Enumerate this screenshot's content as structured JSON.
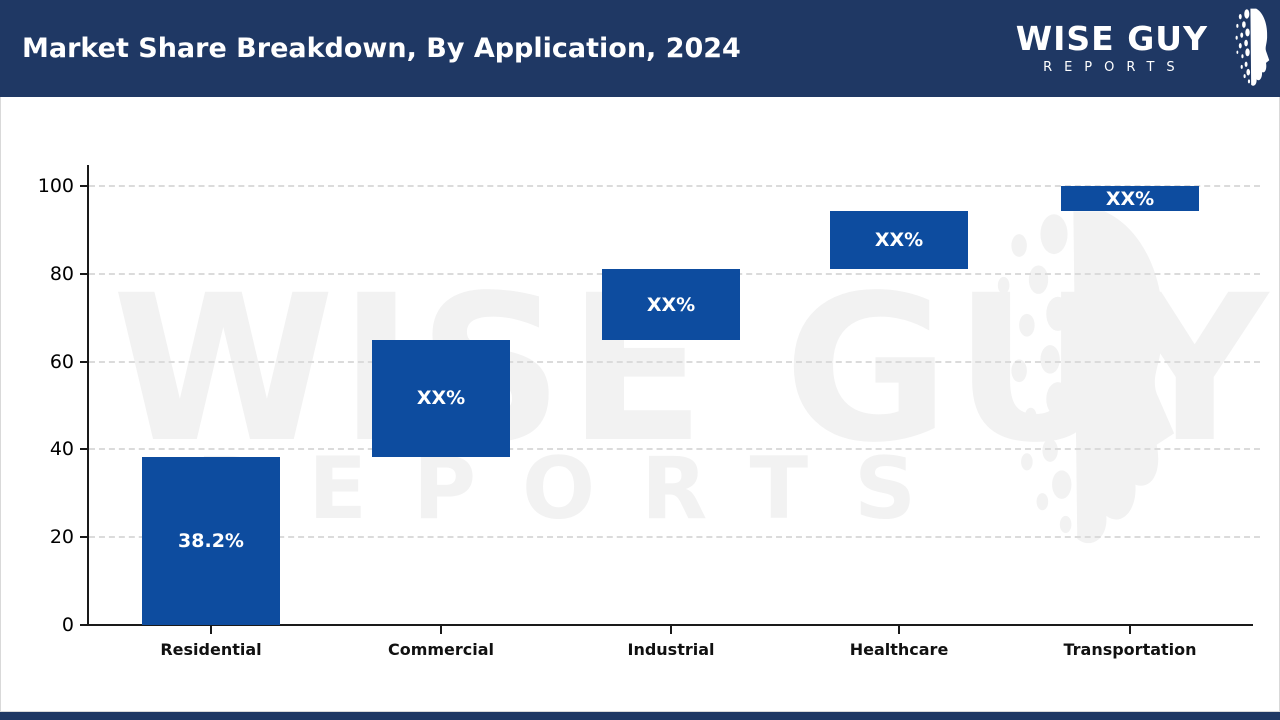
{
  "header": {
    "title": "Market Share Breakdown, By Application, 2024",
    "logo": {
      "line1": "WISE GUY",
      "line2": "REPORTS"
    }
  },
  "watermark": {
    "line1": "WISE GUY",
    "line2": "REPORTS"
  },
  "colors": {
    "header_bg": "#1F3864",
    "bar_blue": "#0D4C9F",
    "gridline": "#DBDBDB",
    "watermark_gray": "#F2F2F2",
    "axis_black": "#1a1a1a"
  },
  "chart_data": {
    "type": "bar",
    "subtype": "waterfall",
    "title": "Market Share Breakdown, By Application, 2024",
    "categories": [
      "Residential",
      "Commercial",
      "Industrial",
      "Healthcare",
      "Transportation"
    ],
    "series": [
      {
        "name": "Market share (%)",
        "segments": [
          {
            "category": "Residential",
            "start": 0,
            "end": 38.2,
            "value": 38.2,
            "label": "38.2%"
          },
          {
            "category": "Commercial",
            "start": 38.2,
            "end": 65,
            "value": 26.8,
            "label": "XX%"
          },
          {
            "category": "Industrial",
            "start": 65,
            "end": 81,
            "value": 16.0,
            "label": "XX%"
          },
          {
            "category": "Healthcare",
            "start": 81,
            "end": 94.3,
            "value": 13.3,
            "label": "XX%"
          },
          {
            "category": "Transportation",
            "start": 94.3,
            "end": 100,
            "value": 5.7,
            "label": "XX%"
          }
        ]
      }
    ],
    "xlabel": "",
    "ylabel": "",
    "ylim": [
      0,
      104
    ],
    "yticks": [
      0,
      20,
      40,
      60,
      80,
      100
    ],
    "grid": "dashed horizontal gridlines",
    "legend": "none",
    "bar_color": "#0D4C9F",
    "bar_label_color": "#FFFFFF"
  }
}
